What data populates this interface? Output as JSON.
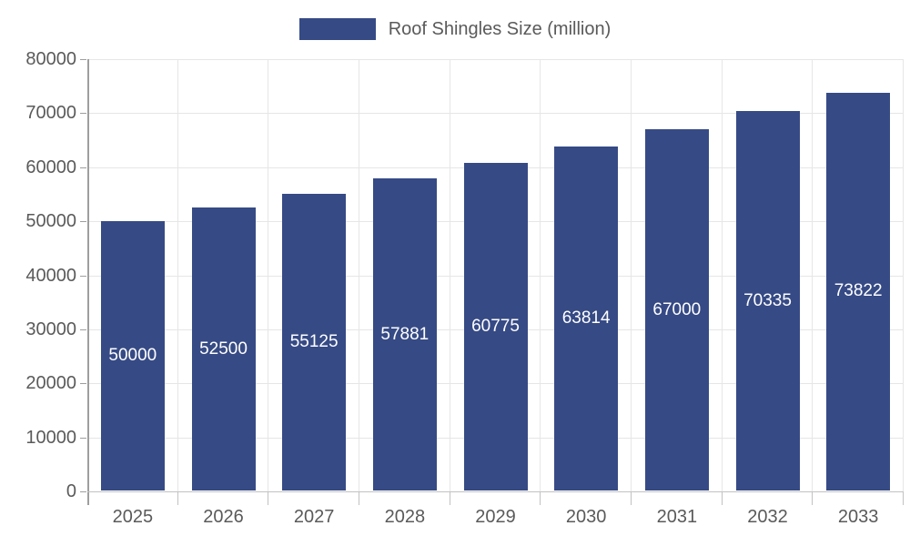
{
  "chart_data": {
    "type": "bar",
    "title": "",
    "legend_label": "Roof Shingles Size (million)",
    "legend_position": "top",
    "categories": [
      "2025",
      "2026",
      "2027",
      "2028",
      "2029",
      "2030",
      "2031",
      "2032",
      "2033"
    ],
    "values": [
      50000,
      52500,
      55125,
      57881,
      60775,
      63814,
      67000,
      70335,
      73822
    ],
    "bar_value_labels": [
      "50000",
      "52500",
      "55125",
      "57881",
      "60775",
      "63814",
      "67000",
      "70335",
      "73822"
    ],
    "value_label_position": "inside-center",
    "xlabel": "",
    "ylabel": "",
    "ylim": [
      0,
      80000
    ],
    "ytick_step": 10000,
    "ytick_labels": [
      "0",
      "10000",
      "20000",
      "30000",
      "40000",
      "50000",
      "60000",
      "70000",
      "80000"
    ],
    "grid": "on"
  },
  "colors": {
    "bar_fill": "#364a85",
    "bar_value_text": "#ffffff",
    "axis_text": "#5a5a5a",
    "legend_text": "#5a5a5a",
    "gridline": "#e6e6e6",
    "y_axis_line": "#9e9e9e",
    "x_axis_line": "#c2c2c2",
    "background": "#ffffff"
  }
}
